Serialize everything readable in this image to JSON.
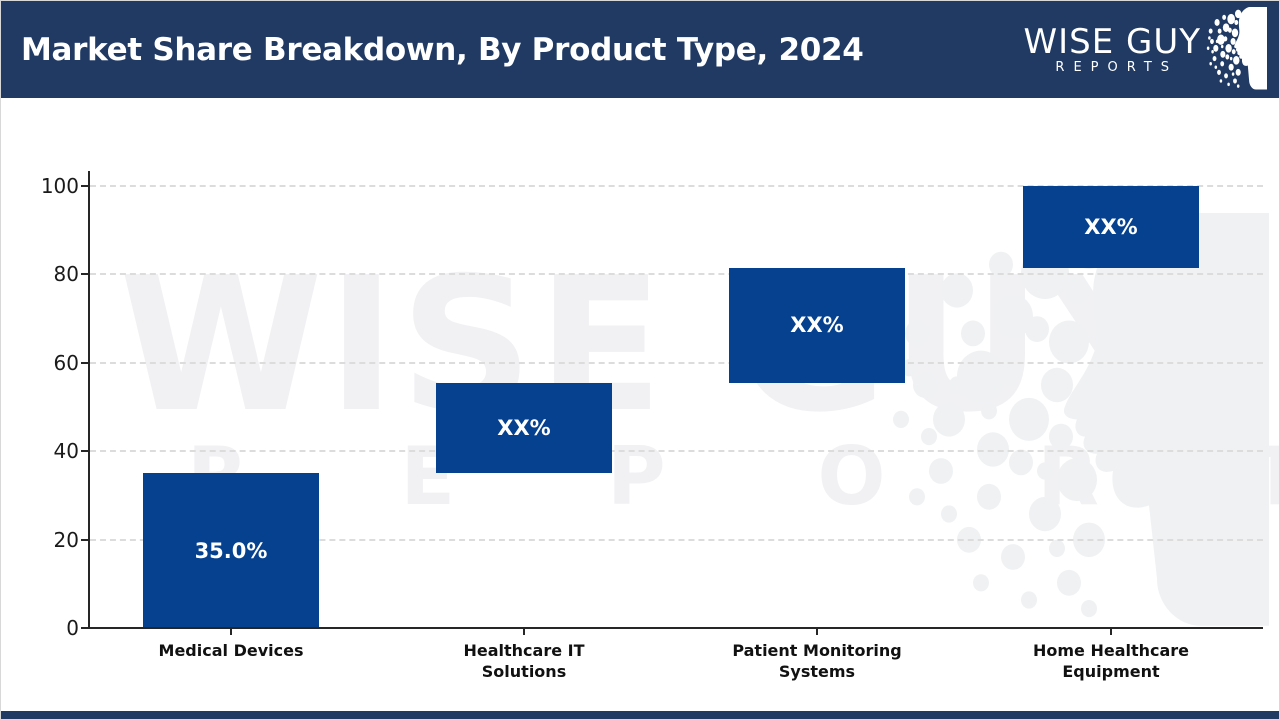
{
  "header": {
    "title": "Market Share Breakdown, By Product Type, 2024",
    "logo_line1": "WISE GUY",
    "logo_line2": "REPORTS",
    "bg_color": "#203a64"
  },
  "watermark": {
    "line1": "WISE GUY",
    "line2": "R E P O R T S",
    "color": "#f1f1f4"
  },
  "chart_data": {
    "type": "bar",
    "subtype": "waterfall",
    "title": "Market Share Breakdown, By Product Type, 2024",
    "categories": [
      "Medical Devices",
      "Healthcare IT Solutions",
      "Patient Monitoring Systems",
      "Home Healthcare Equipment"
    ],
    "category_lines": [
      [
        "Medical Devices"
      ],
      [
        "Healthcare IT",
        "Solutions"
      ],
      [
        "Patient Monitoring",
        "Systems"
      ],
      [
        "Home Healthcare",
        "Equipment"
      ]
    ],
    "segments": [
      {
        "category": "Medical Devices",
        "start": 0,
        "end": 35,
        "label": "35.0%"
      },
      {
        "category": "Healthcare IT Solutions",
        "start": 35,
        "end": 55.5,
        "label": "XX%"
      },
      {
        "category": "Patient Monitoring Systems",
        "start": 55.5,
        "end": 81.5,
        "label": "XX%"
      },
      {
        "category": "Home Healthcare Equipment",
        "start": 81.5,
        "end": 100,
        "label": "XX%"
      }
    ],
    "ylim": [
      0,
      100
    ],
    "yticks": [
      0,
      20,
      40,
      60,
      80,
      100
    ],
    "xlabel": "",
    "ylabel": "",
    "grid": "horizontal-dashed",
    "legend": "none",
    "bar_color": "#05418f"
  },
  "colors": {
    "header_bg": "#203a64",
    "footer_bg": "#203a64",
    "bar": "#05418f",
    "gridline": "#dcdcdc",
    "axis": "#262626"
  }
}
